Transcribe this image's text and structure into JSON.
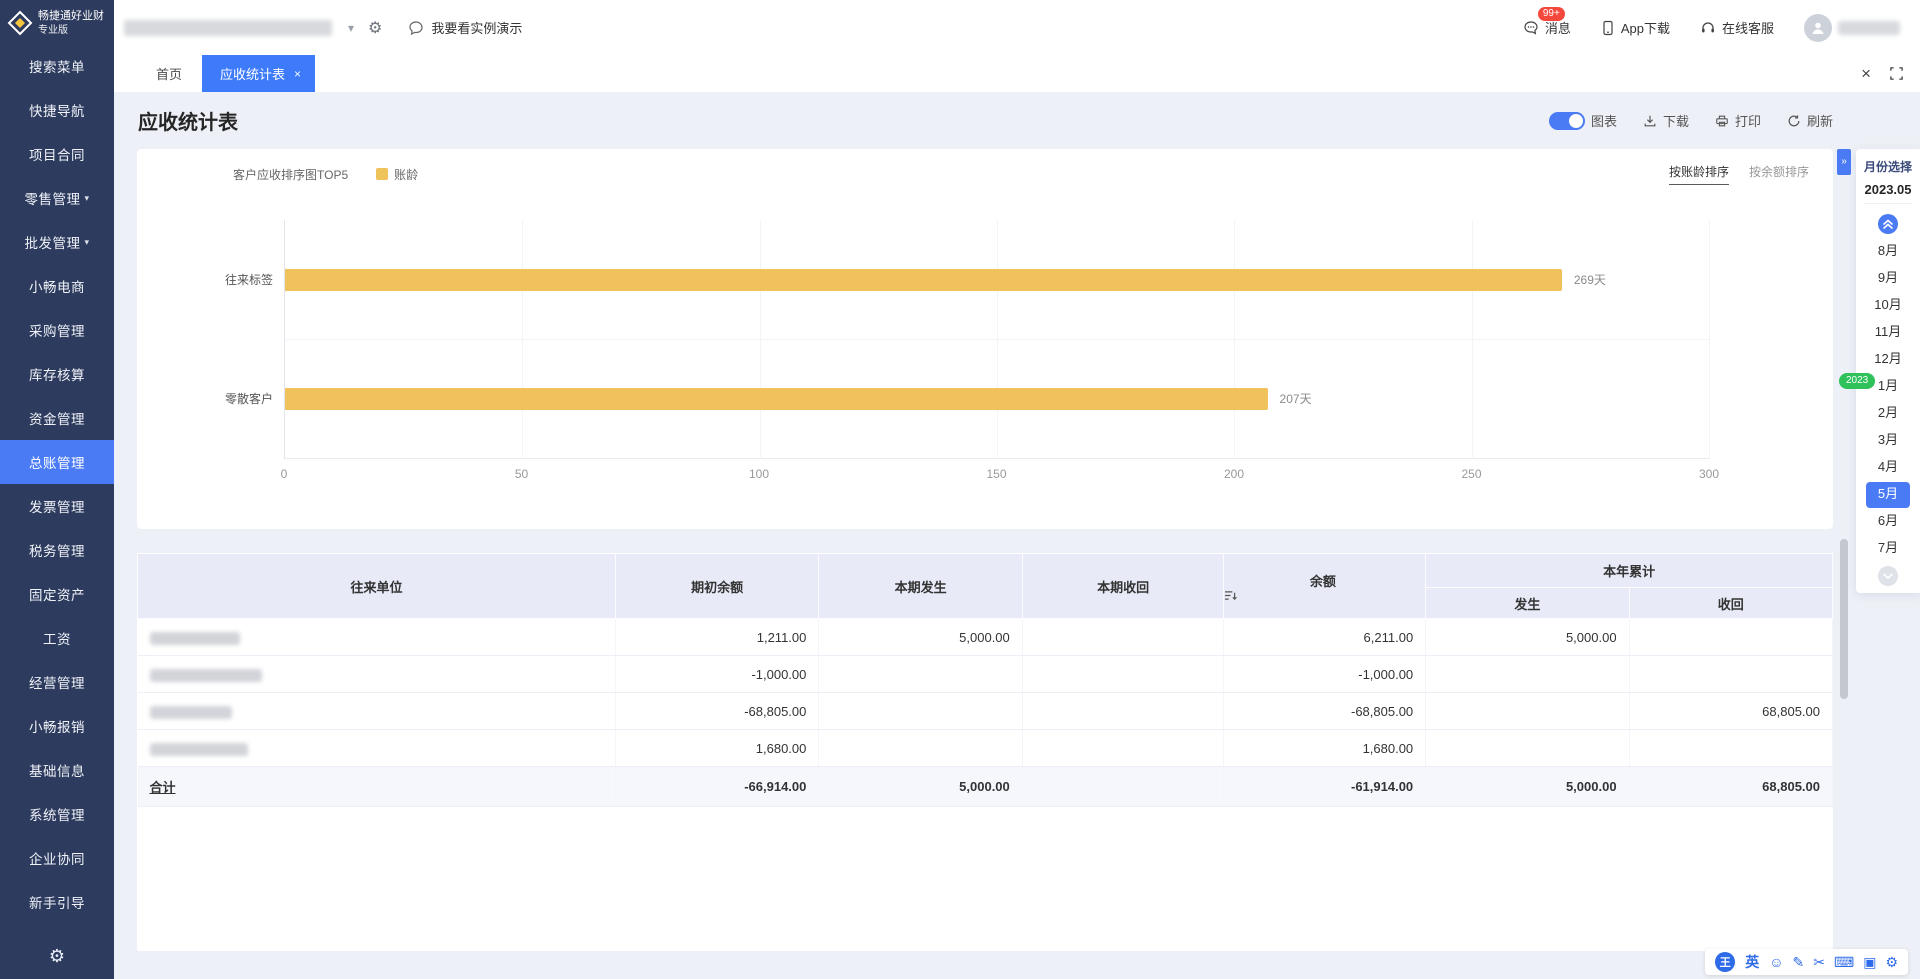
{
  "brand": {
    "name": "畅捷通好业财",
    "edition": "专业版"
  },
  "sidebar": {
    "items": [
      {
        "slug": "search-menu",
        "label": "搜索菜单"
      },
      {
        "slug": "quick-nav",
        "label": "快捷导航"
      },
      {
        "slug": "project-contract",
        "label": "项目合同"
      },
      {
        "slug": "retail-mgmt",
        "label": "零售管理",
        "has_arrow": true
      },
      {
        "slug": "wholesale-mgmt",
        "label": "批发管理",
        "has_arrow": true
      },
      {
        "slug": "xiaochang-ecommerce",
        "label": "小畅电商"
      },
      {
        "slug": "purchase-mgmt",
        "label": "采购管理"
      },
      {
        "slug": "inventory-accounting",
        "label": "库存核算"
      },
      {
        "slug": "fund-mgmt",
        "label": "资金管理"
      },
      {
        "slug": "general-ledger",
        "label": "总账管理",
        "active": true
      },
      {
        "slug": "invoice-mgmt",
        "label": "发票管理"
      },
      {
        "slug": "tax-mgmt",
        "label": "税务管理"
      },
      {
        "slug": "fixed-assets",
        "label": "固定资产"
      },
      {
        "slug": "payroll",
        "label": "工资"
      },
      {
        "slug": "business-mgmt",
        "label": "经营管理"
      },
      {
        "slug": "xiaochang-expense",
        "label": "小畅报销"
      },
      {
        "slug": "basic-info",
        "label": "基础信息"
      },
      {
        "slug": "system-mgmt",
        "label": "系统管理"
      },
      {
        "slug": "enterprise-collab",
        "label": "企业协同"
      },
      {
        "slug": "beginner-guide",
        "label": "新手引导"
      }
    ]
  },
  "topbar": {
    "demo_text": "我要看实例演示",
    "messages": "消息",
    "messages_badge": "99+",
    "app_download": "App下载",
    "online_service": "在线客服"
  },
  "tabs": {
    "home": "首页",
    "active_tab": "应收统计表"
  },
  "page": {
    "title": "应收统计表"
  },
  "toolbar": {
    "chart_label": "图表",
    "download": "下载",
    "print": "打印",
    "refresh": "刷新",
    "toggle_on": true
  },
  "chart_card": {
    "legend_title": "客户应收排序图TOP5",
    "series_label": "账龄",
    "sorts": [
      {
        "label": "按账龄排序",
        "active": true
      },
      {
        "label": "按余额排序",
        "active": false
      }
    ]
  },
  "chart_data": {
    "type": "bar",
    "orientation": "horizontal",
    "title": "客户应收排序图TOP5",
    "categories": [
      "往来标签",
      "零散客户"
    ],
    "series": [
      {
        "name": "账龄",
        "values": [
          269,
          207
        ]
      }
    ],
    "data_labels": [
      "269天",
      "207天"
    ],
    "unit": "天",
    "xlim": [
      0,
      300
    ],
    "x_ticks": [
      0,
      50,
      100,
      150,
      200,
      250,
      300
    ],
    "bar_color": "#f0c25c",
    "legend_position": "top-left",
    "grid": true
  },
  "table": {
    "col_headers": [
      "往来单位",
      "期初余额",
      "本期发生",
      "本期收回",
      "余额"
    ],
    "group_header": {
      "label": "本年累计",
      "children": [
        "发生",
        "收回"
      ]
    },
    "rows": [
      {
        "name_redacted": true,
        "values": [
          "1,211.00",
          "5,000.00",
          "",
          "6,211.00",
          "5,000.00",
          ""
        ]
      },
      {
        "name_redacted": true,
        "values": [
          "-1,000.00",
          "",
          "",
          "-1,000.00",
          "",
          ""
        ]
      },
      {
        "name_redacted": true,
        "values": [
          "-68,805.00",
          "",
          "",
          "-68,805.00",
          "",
          "68,805.00"
        ]
      },
      {
        "name_redacted": true,
        "values": [
          "1,680.00",
          "",
          "",
          "1,680.00",
          "",
          ""
        ]
      }
    ],
    "total": {
      "label": "合计",
      "values": [
        "-66,914.00",
        "5,000.00",
        "",
        "-61,914.00",
        "5,000.00",
        "68,805.00"
      ]
    }
  },
  "month_panel": {
    "title": "月份选择",
    "current": "2023.05",
    "year_badge": "2023",
    "months": [
      "8月",
      "9月",
      "10月",
      "11月",
      "12月",
      "1月",
      "2月",
      "3月",
      "4月",
      "5月",
      "6月",
      "7月"
    ],
    "active": "5月"
  },
  "ime": {
    "logo": "王",
    "lang": "英",
    "icons": [
      "smiley",
      "pen",
      "scissors",
      "keyboard",
      "toolbox",
      "settings"
    ]
  },
  "colors": {
    "accent": "#4a7bf5",
    "bar": "#f0c25c",
    "badge_red": "#f5483d",
    "badge_green": "#2fc25b",
    "sidebar": "#2d3b5e"
  }
}
